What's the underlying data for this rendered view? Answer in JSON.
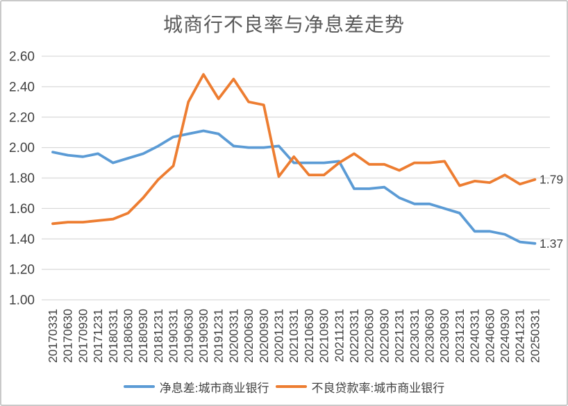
{
  "chart_data": {
    "type": "line",
    "title": "城商行不良率与净息差走势",
    "categories": [
      "20170331",
      "20170630",
      "20170930",
      "20171231",
      "20180331",
      "20180630",
      "20180930",
      "20181231",
      "20190331",
      "20190630",
      "20190930",
      "20191231",
      "20200331",
      "20200630",
      "20200930",
      "20201231",
      "20210331",
      "20210630",
      "20210930",
      "20211231",
      "20220331",
      "20220630",
      "20220930",
      "20221231",
      "20230331",
      "20230630",
      "20230930",
      "20231231",
      "20240331",
      "20240630",
      "20240930",
      "20241231",
      "20250331"
    ],
    "series": [
      {
        "name": "净息差:城市商业银行",
        "color": "#5B9BD5",
        "values": [
          1.97,
          1.95,
          1.94,
          1.96,
          1.9,
          1.93,
          1.96,
          2.01,
          2.07,
          2.09,
          2.11,
          2.09,
          2.01,
          2.0,
          2.0,
          2.01,
          1.9,
          1.9,
          1.9,
          1.91,
          1.73,
          1.73,
          1.74,
          1.67,
          1.63,
          1.63,
          1.6,
          1.57,
          1.45,
          1.45,
          1.43,
          1.38,
          1.37
        ],
        "end_label": "1.37"
      },
      {
        "name": "不良贷款率:城市商业银行",
        "color": "#ED7D31",
        "values": [
          1.5,
          1.51,
          1.51,
          1.52,
          1.53,
          1.57,
          1.67,
          1.79,
          1.88,
          2.3,
          2.48,
          2.32,
          2.45,
          2.3,
          2.28,
          1.81,
          1.94,
          1.82,
          1.82,
          1.9,
          1.96,
          1.89,
          1.89,
          1.85,
          1.9,
          1.9,
          1.91,
          1.75,
          1.78,
          1.77,
          1.82,
          1.76,
          1.79
        ],
        "end_label": "1.79"
      }
    ],
    "xlabel": "",
    "ylabel": "",
    "ylim": [
      1.0,
      2.6
    ],
    "ytick_step": 0.2,
    "ytick_labels": [
      "1.00",
      "1.20",
      "1.40",
      "1.60",
      "1.80",
      "2.00",
      "2.20",
      "2.40",
      "2.60"
    ],
    "grid": true,
    "x_label_rotation": 90,
    "legend_position": "bottom",
    "colors": {
      "gridline": "#D9D9D9",
      "axis_text": "#404040",
      "title_text": "#595959",
      "data_label_text": "#404040",
      "frame_border": "#C9C9C9"
    }
  }
}
